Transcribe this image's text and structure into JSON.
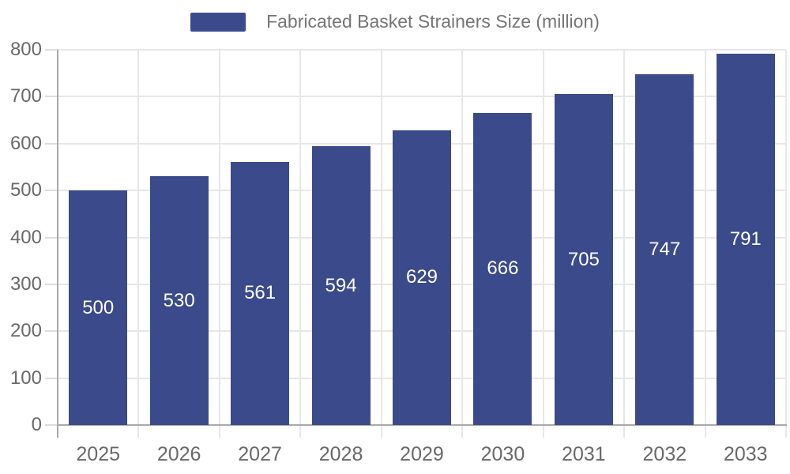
{
  "legend": {
    "position": "top-center"
  },
  "colors": {
    "bar": "#3A4A8B",
    "grid_line": "#E7E7EA",
    "axis_line": "#A9A9A9",
    "axis_tick": "#DCDCDC",
    "axis_label_text": "#696969",
    "legend_text": "#757575",
    "value_label_text": "#FFFFFF",
    "background": "#FFFFFF"
  },
  "chart_data": {
    "type": "bar",
    "title": "",
    "xlabel": "",
    "ylabel": "",
    "categories": [
      "2025",
      "2026",
      "2027",
      "2028",
      "2029",
      "2030",
      "2031",
      "2032",
      "2033"
    ],
    "series": [
      {
        "name": "Fabricated Basket Strainers Size (million)",
        "values": [
          500,
          530,
          561,
          594,
          629,
          666,
          705,
          747,
          791
        ],
        "color": "#3A4A8B"
      }
    ],
    "ylim": [
      0,
      800
    ],
    "ytick_step": 100,
    "yticks": [
      0,
      100,
      200,
      300,
      400,
      500,
      600,
      700,
      800
    ],
    "grid": "on",
    "legend_position": "top-center",
    "value_labels": "inside-center"
  }
}
